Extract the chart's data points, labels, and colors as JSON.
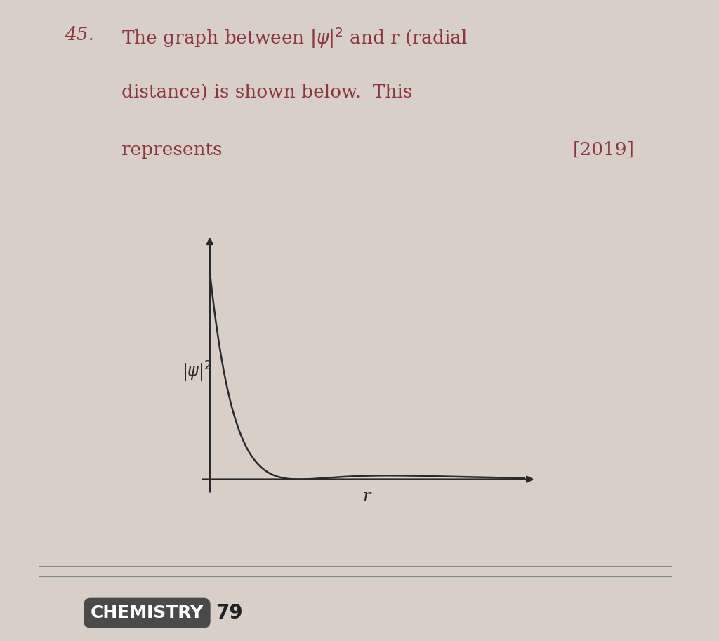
{
  "page_background": "#d8d0c8",
  "text_color": "#8b3540",
  "question_number": "45.",
  "footer_text": "CHEMISTRY",
  "footer_number": "79",
  "footer_bg": "#4a4a4a",
  "curve_color": "#2a2a2a",
  "axis_color": "#2a2a2a",
  "line_width": 1.8,
  "font_size_question": 19,
  "font_size_axis_label": 17,
  "left_strip_color": "#c8a855",
  "right_strip_color": "#cc3333",
  "separator_color": "#888888"
}
